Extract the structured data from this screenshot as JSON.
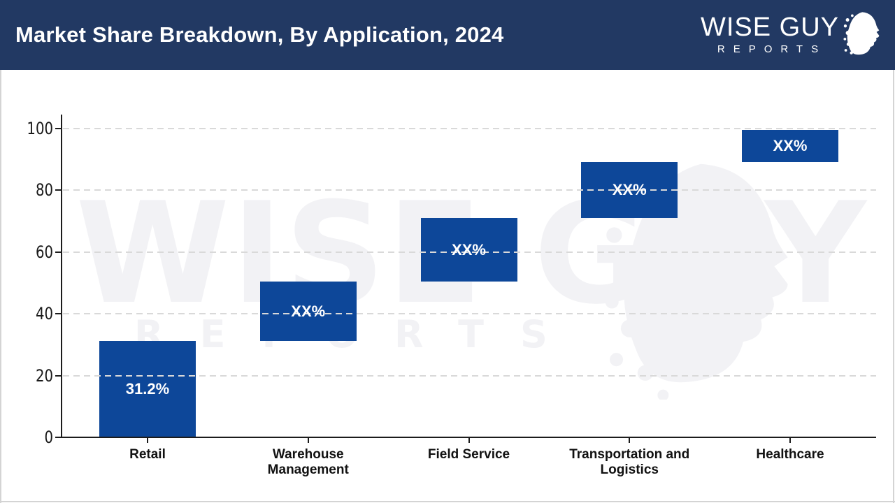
{
  "header": {
    "title": "Market Share Breakdown, By Application, 2024",
    "bg_color": "#223963",
    "brand": {
      "line1": "WISE GUY",
      "line2": "REPORTS",
      "icon": "dotted-head-profile-icon"
    }
  },
  "watermark": {
    "line1": "WISE GUY",
    "line2": "REPORTS",
    "icon": "dotted-head-profile-icon",
    "color": "#f2f2f5"
  },
  "chart_data": {
    "type": "bar",
    "subtype": "floating-waterfall-columns",
    "title": "Market Share Breakdown, By Application, 2024",
    "categories": [
      "Retail",
      "Warehouse Management",
      "Field Service",
      "Transportation and Logistics",
      "Healthcare"
    ],
    "segments": [
      {
        "category": "Retail",
        "start": 0,
        "end": 31.2,
        "label": "31.2%"
      },
      {
        "category": "Warehouse Management",
        "start": 31.2,
        "end": 50.4,
        "label": "XX%"
      },
      {
        "category": "Field Service",
        "start": 50.4,
        "end": 71.0,
        "label": "XX%"
      },
      {
        "category": "Transportation and Logistics",
        "start": 71.0,
        "end": 89.2,
        "label": "XX%"
      },
      {
        "category": "Healthcare",
        "start": 89.2,
        "end": 99.5,
        "label": "XX%"
      }
    ],
    "y_ticks": [
      0,
      20,
      40,
      60,
      80,
      100
    ],
    "ylim": [
      0,
      105
    ],
    "xlabel": "",
    "ylabel": "",
    "bar_color": "#0d4799",
    "grid": "horizontal-dashed",
    "gridlines_above_bars": true,
    "legend": "none"
  }
}
